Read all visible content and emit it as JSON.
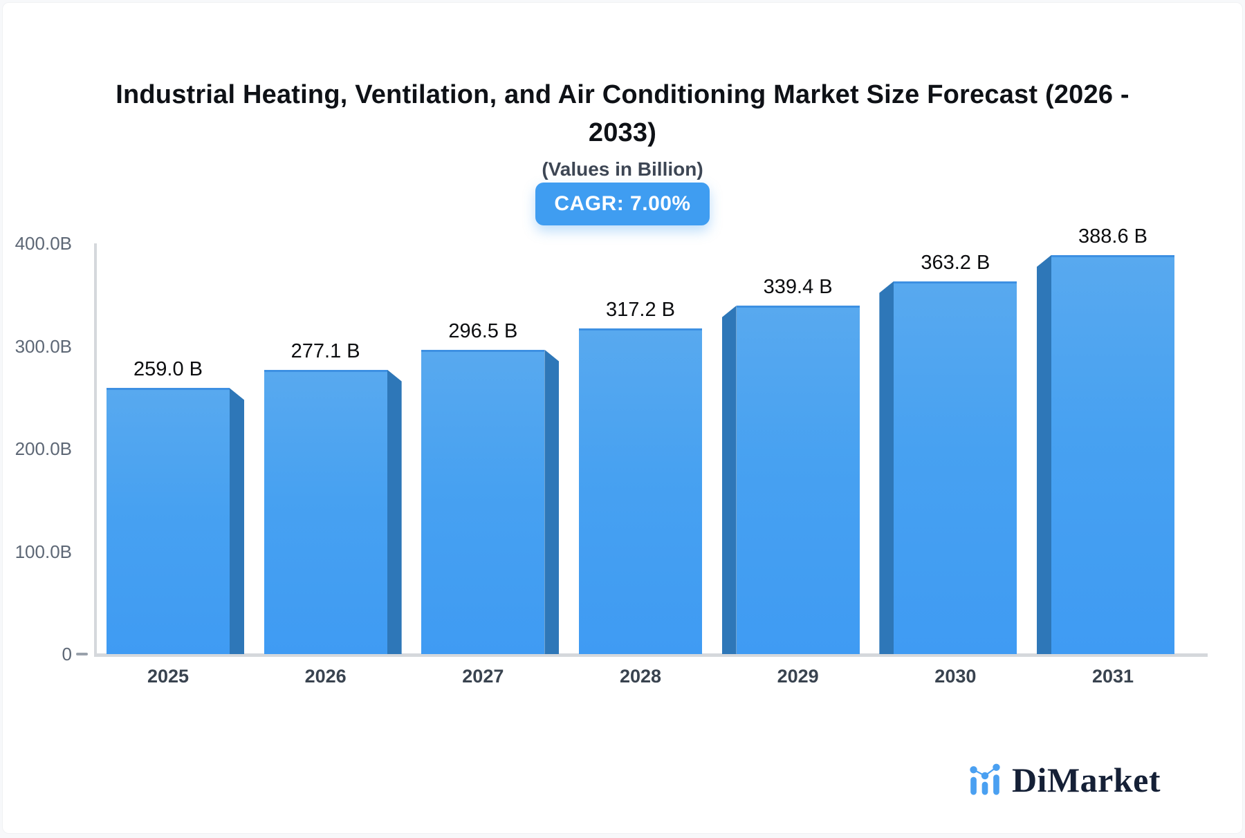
{
  "header": {
    "title_line1": "Industrial Heating, Ventilation, and Air Conditioning Market Size Forecast (2026 -",
    "title_line2": "2033)",
    "subtitle": "(Values in Billion)",
    "cagr_badge": "CAGR: 7.00%",
    "badge_color": "#3f9df1"
  },
  "chart_data": {
    "type": "bar",
    "title": "Industrial Heating, Ventilation, and Air Conditioning Market Size Forecast (2026 - 2033)",
    "subtitle": "(Values in Billion)",
    "annotation": "CAGR: 7.00%",
    "categories": [
      "2025",
      "2026",
      "2027",
      "2028",
      "2029",
      "2030",
      "2031"
    ],
    "values": [
      259.0,
      277.1,
      296.5,
      317.2,
      339.4,
      363.2,
      388.6
    ],
    "value_labels": [
      "259.0 B",
      "277.1 B",
      "296.5 B",
      "317.2 B",
      "339.4 B",
      "363.2 B",
      "388.6 B"
    ],
    "unit": "Billion",
    "y_axis": {
      "tick_labels": [
        "400.0B",
        "300.0B",
        "200.0B",
        "100.0B",
        "0"
      ],
      "tick_values": [
        400,
        300,
        200,
        100,
        0
      ],
      "min": 0,
      "max": 400,
      "grid": false
    },
    "legend": "none",
    "colors": {
      "bar_face_top": "#58a9ef",
      "bar_face_bottom": "#3f9bf3",
      "bar_side_3d": "#2e77b8",
      "bar_top_edge": "#3d90e2",
      "axis_line": "#d5d8dc",
      "tick_text": "#5d6775"
    }
  },
  "footer": {
    "brand": "DiMarket",
    "brand_color": "#152036",
    "logo_icon_color": "#4aa0f1"
  }
}
